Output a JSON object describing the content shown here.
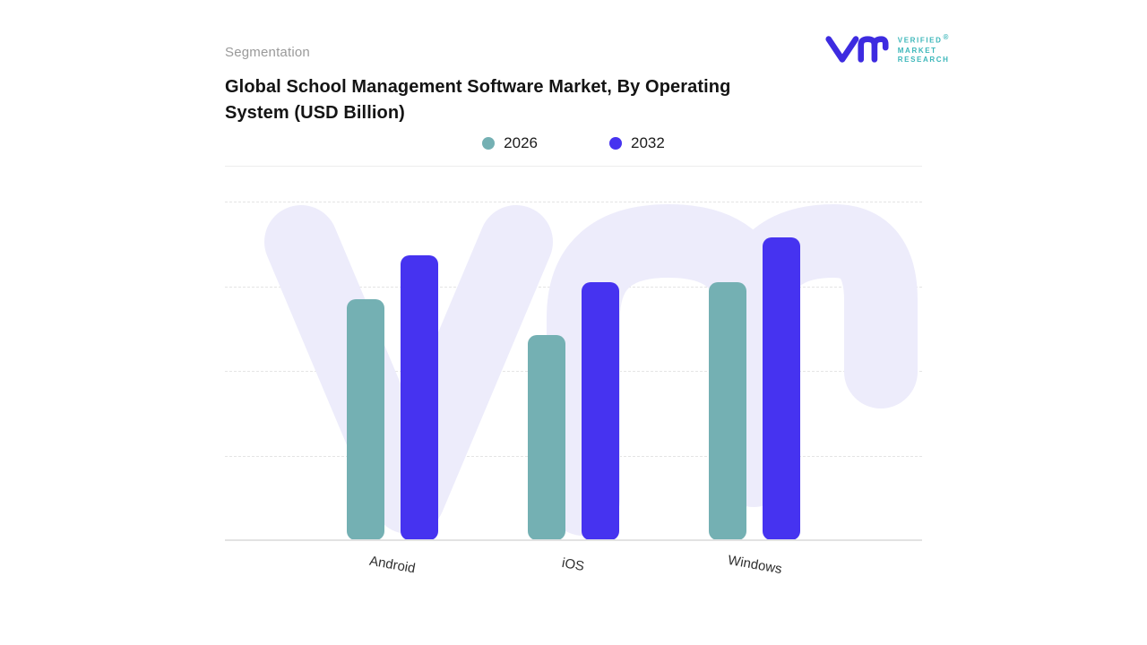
{
  "header": {
    "eyebrow": "Segmentation",
    "title": "Global School Management Software Market, By Operating System (USD Billion)"
  },
  "logo": {
    "lines": [
      "VERIFIED",
      "MARKET",
      "RESEARCH"
    ],
    "registered": "®",
    "mark_color": "#3d2be0",
    "text_color": "#3cb7ba"
  },
  "legend": [
    {
      "label": "2026",
      "color": "#74b0b3"
    },
    {
      "label": "2032",
      "color": "#4633f0"
    }
  ],
  "chart_data": {
    "type": "bar",
    "title": "Global School Management Software Market, By Operating System (USD Billion)",
    "categories": [
      "Android",
      "iOS",
      "Windows"
    ],
    "series": [
      {
        "name": "2026",
        "color": "#74b0b3",
        "values": [
          2.7,
          2.3,
          2.9
        ]
      },
      {
        "name": "2032",
        "color": "#4633f0",
        "values": [
          3.2,
          2.9,
          3.4
        ]
      }
    ],
    "ylabel": "USD Billion",
    "ylim": [
      0,
      3.8
    ],
    "grid": "horizontal-dashed",
    "legend_position": "top-center",
    "watermark": "vm-logomark",
    "watermark_color": "#edecfb"
  }
}
